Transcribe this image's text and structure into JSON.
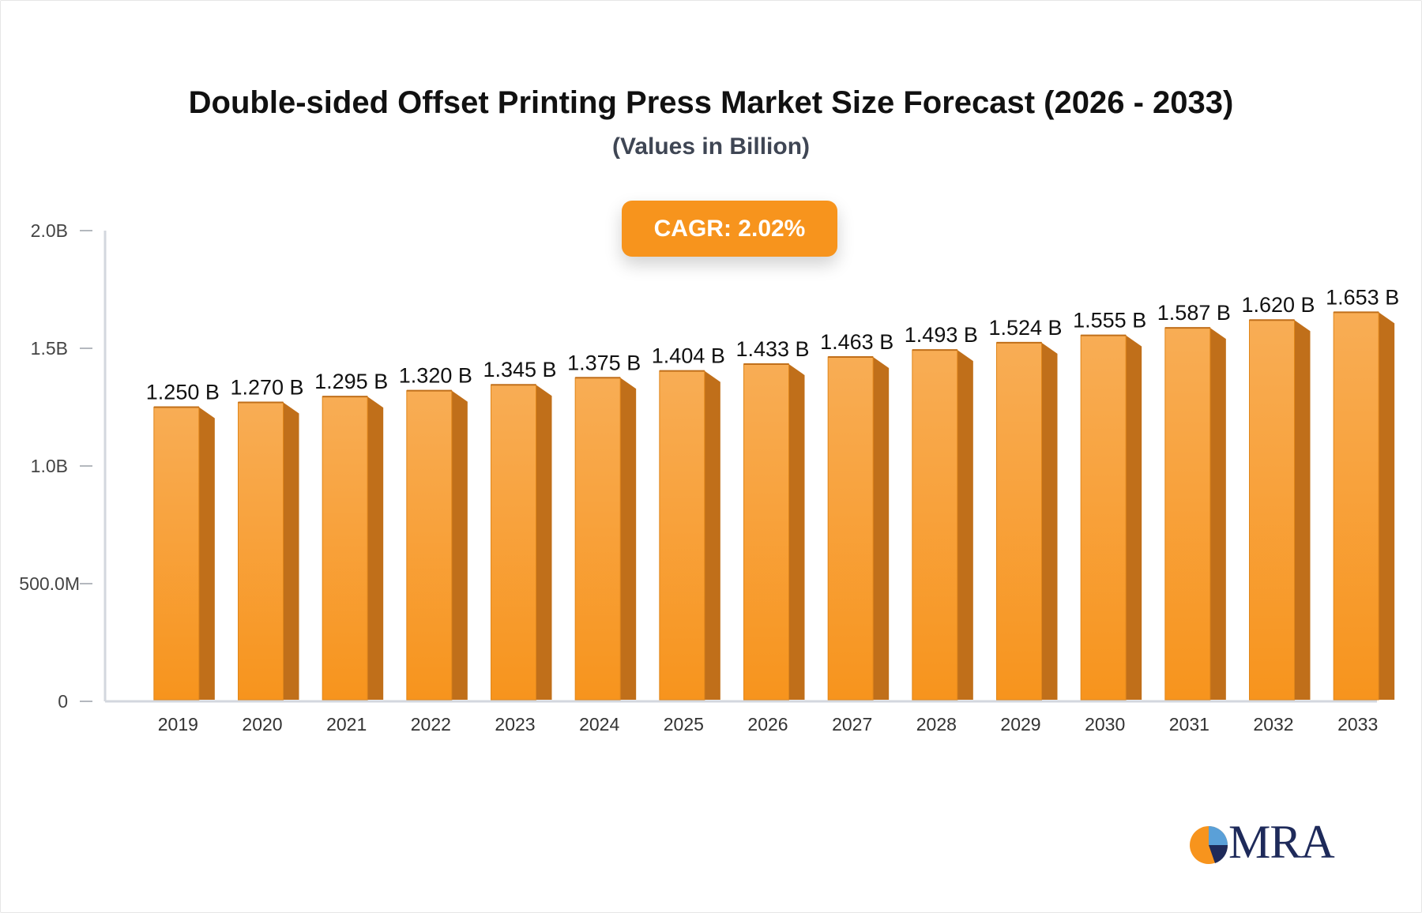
{
  "title": "Double-sided Offset Printing Press Market Size Forecast (2026 - 2033)",
  "subtitle": "(Values in Billion)",
  "cagr_label": "CAGR: 2.02%",
  "logo_text": "MRA",
  "colors": {
    "bar_front_top": "#f8ad55",
    "bar_front_bottom": "#f7941d",
    "bar_side": "#c06f1a",
    "cagr_badge": "#f7941d",
    "axis": "#d3d7de"
  },
  "chart_data": {
    "type": "bar",
    "categories": [
      "2019",
      "2020",
      "2021",
      "2022",
      "2023",
      "2024",
      "2025",
      "2026",
      "2027",
      "2028",
      "2029",
      "2030",
      "2031",
      "2032",
      "2033"
    ],
    "values": [
      1.25,
      1.27,
      1.295,
      1.32,
      1.345,
      1.375,
      1.404,
      1.433,
      1.463,
      1.493,
      1.524,
      1.555,
      1.587,
      1.62,
      1.653
    ],
    "data_labels": [
      "1.250 B",
      "1.270 B",
      "1.295 B",
      "1.320 B",
      "1.345 B",
      "1.375 B",
      "1.404 B",
      "1.433 B",
      "1.463 B",
      "1.493 B",
      "1.524 B",
      "1.555 B",
      "1.587 B",
      "1.620 B",
      "1.653 B"
    ],
    "y_ticks": [
      {
        "value": 0,
        "label": "0"
      },
      {
        "value": 0.5,
        "label": "500.0M"
      },
      {
        "value": 1.0,
        "label": "1.0B"
      },
      {
        "value": 1.5,
        "label": "1.5B"
      },
      {
        "value": 2.0,
        "label": "2.0B"
      }
    ],
    "ylim": [
      0,
      2.0
    ],
    "xlabel": "",
    "ylabel": "",
    "grid": false,
    "legend": "none"
  }
}
